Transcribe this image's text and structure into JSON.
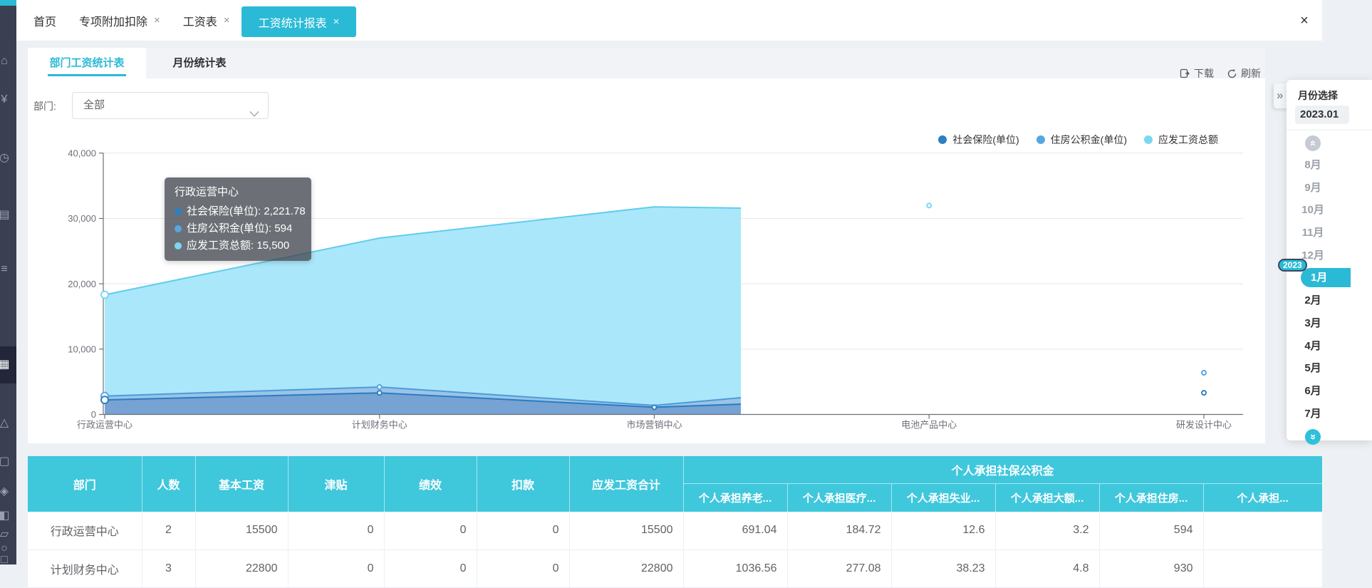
{
  "colors": {
    "accent": "#2bbad6",
    "table_header": "#3fc7dc",
    "page_bg": "#edf0f4",
    "sidebar_bg": "#3b3f52"
  },
  "sidebar": {
    "active_index": 5,
    "icons": [
      {
        "name": "home",
        "glyph": "⌂"
      },
      {
        "name": "currency",
        "glyph": "¥"
      },
      {
        "name": "clock",
        "glyph": "◷"
      },
      {
        "name": "document",
        "glyph": "▤"
      },
      {
        "name": "menu",
        "glyph": "≡"
      },
      {
        "name": "salary-grid",
        "glyph": "▦"
      },
      {
        "name": "flag",
        "glyph": "△"
      },
      {
        "name": "window",
        "glyph": "▢"
      },
      {
        "name": "diamond",
        "glyph": "◈"
      },
      {
        "name": "panel",
        "glyph": "◧"
      },
      {
        "name": "card",
        "glyph": "▱"
      },
      {
        "name": "circle",
        "glyph": "○"
      },
      {
        "name": "box",
        "glyph": "□"
      }
    ]
  },
  "tab_bar": {
    "tabs": [
      {
        "label": "首页",
        "closable": false,
        "active": false
      },
      {
        "label": "专项附加扣除",
        "closable": true,
        "active": false
      },
      {
        "label": "工资表",
        "closable": true,
        "active": false
      },
      {
        "label": "工资统计报表",
        "closable": true,
        "active": true
      }
    ],
    "close_glyph": "×",
    "close_all_label": "×"
  },
  "sub_tabs": [
    {
      "label": "部门工资统计表",
      "active": true
    },
    {
      "label": "月份统计表",
      "active": false
    }
  ],
  "toolbar": {
    "download_label": "下载",
    "refresh_label": "刷新"
  },
  "filter": {
    "label": "部门:",
    "value": "全部"
  },
  "chart_data": {
    "type": "area",
    "stacked": true,
    "categories": [
      "行政运营中心",
      "计划财务中心",
      "市场营销中心",
      "电池产品中心",
      "研发设计中心"
    ],
    "series": [
      {
        "name": "社会保险(单位)",
        "dot_color": "#2e7fc1",
        "line_color": "#2b7bc0",
        "fill_color": "#6f9ed2",
        "values": [
          2221.78,
          3300,
          1100,
          null,
          null
        ]
      },
      {
        "name": "住房公积金(单位)",
        "dot_color": "#55a7e1",
        "line_color": "#4f9ad8",
        "fill_color": "#93c1e7",
        "values": [
          594,
          900,
          270,
          null,
          null
        ]
      },
      {
        "name": "应发工资总额",
        "dot_color": "#7cd8f1",
        "line_color": "#5fcdee",
        "fill_color": "#a6e6fa",
        "values": [
          15500,
          22800,
          30400,
          null,
          null
        ]
      }
    ],
    "render_cutoff": {
      "after_category_index": 2,
      "fraction_to_next": 0.315,
      "cumulative_values": [
        1582,
        2563,
        31580
      ]
    },
    "isolated_points": [
      {
        "category_index": 3,
        "series_index": 2,
        "value": 31970
      },
      {
        "category_index": 4,
        "series_index": 1,
        "value": 6380
      },
      {
        "category_index": 4,
        "series_index": 0,
        "value": 3320
      }
    ],
    "ylim": [
      0,
      40000
    ],
    "yticks": [
      0,
      10000,
      20000,
      30000,
      40000
    ],
    "ytick_labels": [
      "0",
      "10,000",
      "20,000",
      "30,000",
      "40,000"
    ],
    "legend_position": "top-right",
    "grid": true
  },
  "tooltip": {
    "title": "行政运营中心",
    "rows": [
      {
        "label": "社会保险(单位)",
        "value": "2,221.78"
      },
      {
        "label": "住房公积金(单位)",
        "value": "594"
      },
      {
        "label": "应发工资总额",
        "value": "15,500"
      }
    ]
  },
  "month_panel": {
    "collapse_glyph": "»",
    "title": "月份选择",
    "period": "2023.01",
    "year_badge": "2023",
    "prev_months": [
      "8月",
      "9月",
      "10月",
      "11月",
      "12月"
    ],
    "active_month": "1月",
    "next_months": [
      "2月",
      "3月",
      "4月",
      "5月",
      "6月",
      "7月"
    ]
  },
  "table": {
    "columns": [
      "部门",
      "人数",
      "基本工资",
      "津贴",
      "绩效",
      "扣款",
      "应发工资合计"
    ],
    "group_header": "个人承担社保公积金",
    "group_columns": [
      "个人承担养老...",
      "个人承担医疗...",
      "个人承担失业...",
      "个人承担大额...",
      "个人承担住房...",
      "个人承担..."
    ],
    "rows": [
      [
        "行政运营中心",
        "2",
        "15500",
        "0",
        "0",
        "0",
        "15500",
        "691.04",
        "184.72",
        "12.6",
        "3.2",
        "594",
        ""
      ],
      [
        "计划财务中心",
        "3",
        "22800",
        "0",
        "0",
        "0",
        "22800",
        "1036.56",
        "277.08",
        "38.23",
        "4.8",
        "930",
        ""
      ]
    ]
  }
}
